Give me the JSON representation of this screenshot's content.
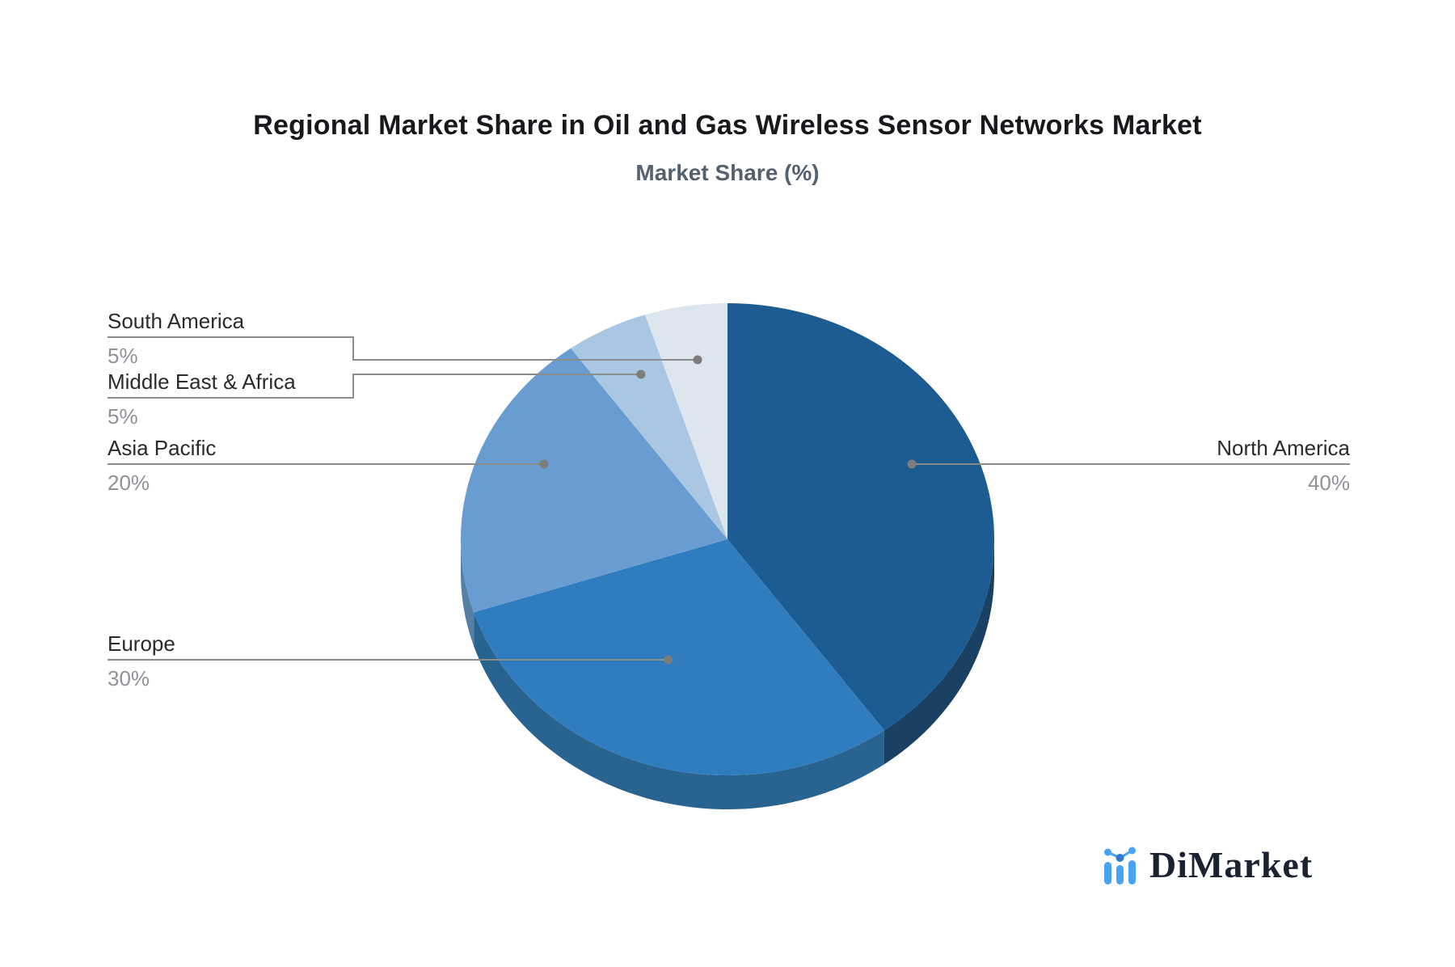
{
  "header": {
    "title": "Regional Market Share in Oil and Gas Wireless Sensor Networks Market",
    "subtitle": "Market Share (%)"
  },
  "chart_data": {
    "type": "pie",
    "style": "3d-pie",
    "title": "Regional Market Share in Oil and Gas Wireless Sensor Networks Market",
    "subtitle": "Market Share (%)",
    "unit": "%",
    "start_angle": "12-oclock",
    "direction": "clockwise",
    "legend_position": "none",
    "grid": false,
    "slices": [
      {
        "label": "North America",
        "value": 40,
        "display": "40%",
        "color": "#1d5b93",
        "side_color": "#1a4064",
        "label_side": "right"
      },
      {
        "label": "Europe",
        "value": 30,
        "display": "30%",
        "color": "#2f7cbe",
        "side_color": "#29638f",
        "label_side": "left"
      },
      {
        "label": "Asia Pacific",
        "value": 20,
        "display": "20%",
        "color": "#699dd1",
        "side_color": "#567fa6",
        "label_side": "left"
      },
      {
        "label": "Middle East & Africa",
        "value": 5,
        "display": "5%",
        "color": "#a9c6e2",
        "side_color": "#87a3bd",
        "label_side": "left"
      },
      {
        "label": "South America",
        "value": 5,
        "display": "5%",
        "color": "#dde5ef",
        "side_color": "#b4bdc9",
        "label_side": "left"
      }
    ]
  },
  "branding": {
    "logo_text": "DiMarket",
    "logo_icon": "bar-chart-trend-icon"
  },
  "colors": {
    "background": "#ffffff",
    "title": "#17191c",
    "subtitle": "#566170",
    "label_text": "#2b2b2b",
    "value_text": "#8f9398",
    "leader_line": "#8c8c8c",
    "leader_dot": "#7d7d7d",
    "logo_blue": "#4aa2f2",
    "logo_text_color": "#1b2333"
  }
}
